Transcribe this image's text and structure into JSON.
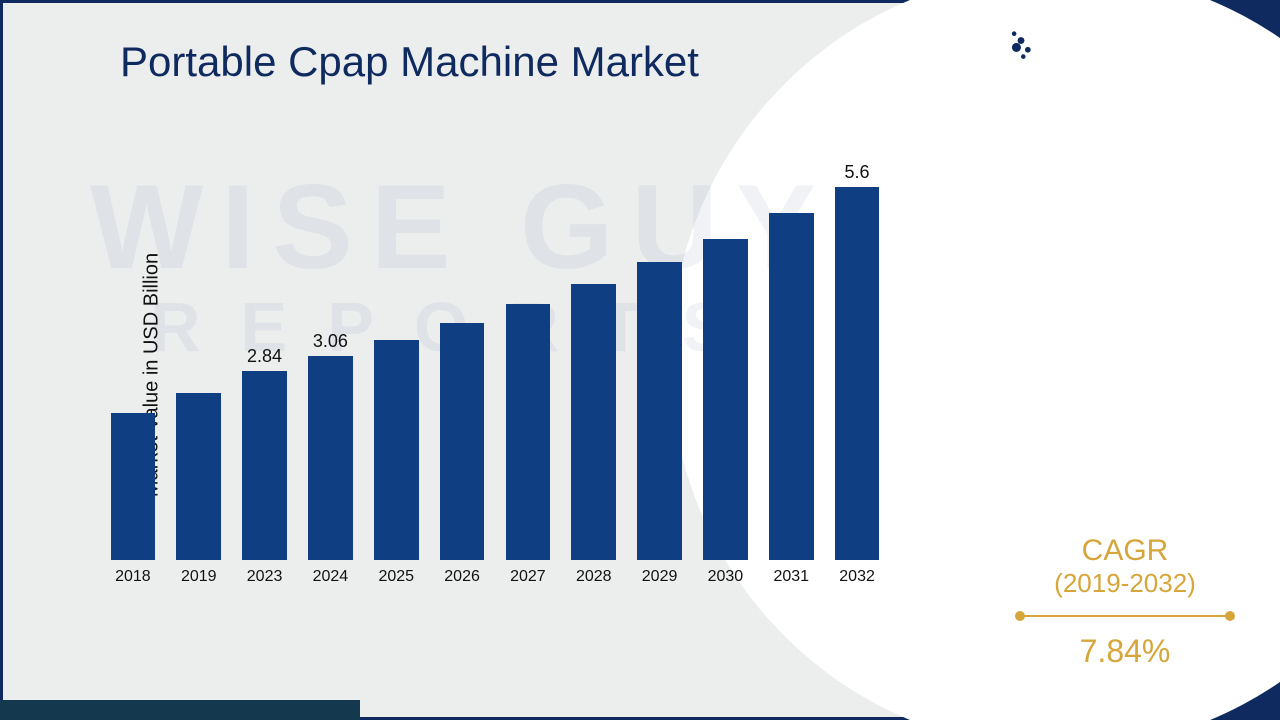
{
  "title": "Portable Cpap Machine Market",
  "brand": {
    "line1": "WISE GUY",
    "line2": "R E P O R T S"
  },
  "watermark": {
    "line1": "WISE GUY",
    "line2": "REPORTS"
  },
  "y_axis_label": "Market Value in USD Billion",
  "cagr": {
    "label": "CAGR",
    "period": "(2019-2032)",
    "value": "7.84%"
  },
  "colors": {
    "background": "#eceeee",
    "panel": "#0f2a5e",
    "circle": "#ffffff",
    "bar": "#0f3e82",
    "title": "#0f2a5e",
    "accent_gold": "#d6a63a",
    "footer": "#14384d",
    "text": "#111111",
    "logo_text": "#ffffff",
    "watermark": "rgba(15,42,94,0.06)"
  },
  "chart": {
    "type": "bar",
    "ylim": [
      0,
      6
    ],
    "bar_fill": "#0f3e82",
    "label_fontsize": 18,
    "xlabel_fontsize": 16,
    "bar_width_ratio": 0.68,
    "series": [
      {
        "x": "2018",
        "value": 2.2,
        "show_label": false
      },
      {
        "x": "2019",
        "value": 2.5,
        "show_label": false
      },
      {
        "x": "2023",
        "value": 2.84,
        "show_label": true,
        "label": "2.84"
      },
      {
        "x": "2024",
        "value": 3.06,
        "show_label": true,
        "label": "3.06"
      },
      {
        "x": "2025",
        "value": 3.3,
        "show_label": false
      },
      {
        "x": "2026",
        "value": 3.56,
        "show_label": false
      },
      {
        "x": "2027",
        "value": 3.84,
        "show_label": false
      },
      {
        "x": "2028",
        "value": 4.14,
        "show_label": false
      },
      {
        "x": "2029",
        "value": 4.47,
        "show_label": false
      },
      {
        "x": "2030",
        "value": 4.82,
        "show_label": false
      },
      {
        "x": "2031",
        "value": 5.2,
        "show_label": false
      },
      {
        "x": "2032",
        "value": 5.6,
        "show_label": true,
        "label": "5.6"
      }
    ]
  }
}
